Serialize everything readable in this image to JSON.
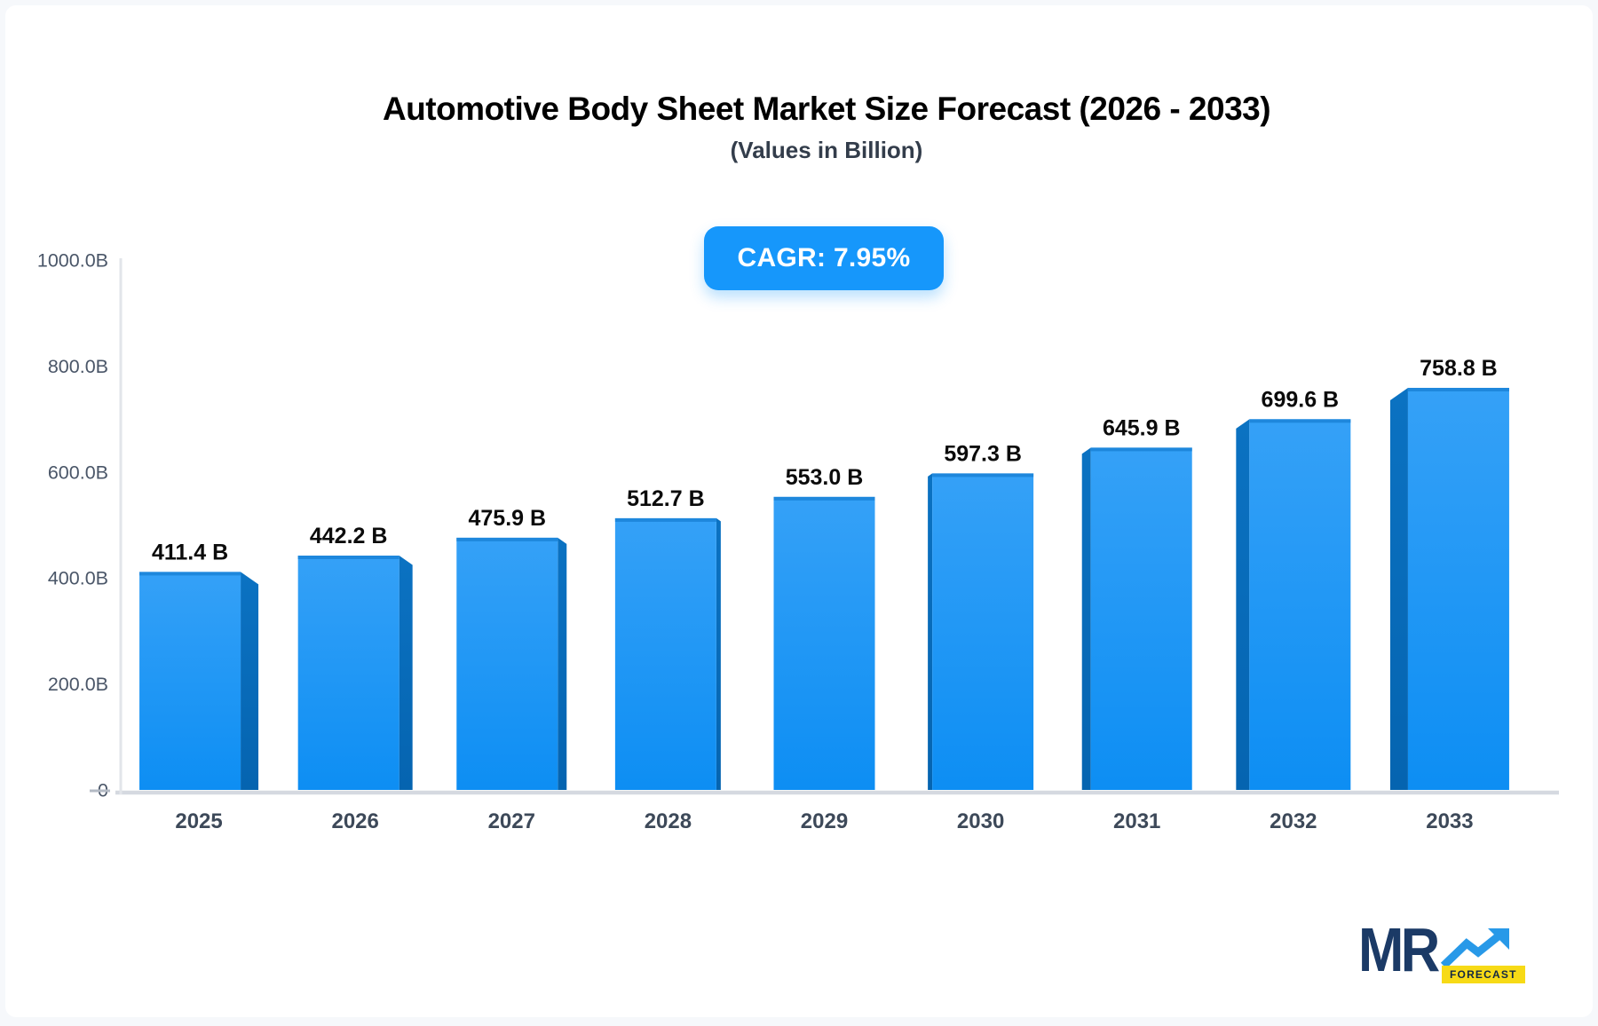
{
  "header": {
    "title": "Automotive Body Sheet Market Size Forecast (2026 - 2033)",
    "subtitle": "(Values in Billion)"
  },
  "badge": {
    "label": "CAGR: 7.95%",
    "bg": "#1697fb",
    "text_color": "#ffffff"
  },
  "chart_data": {
    "type": "bar",
    "title": "Automotive Body Sheet Market Size Forecast (2026 - 2033)",
    "subtitle": "(Values in Billion)",
    "xlabel": "",
    "ylabel": "",
    "categories": [
      "2025",
      "2026",
      "2027",
      "2028",
      "2029",
      "2030",
      "2031",
      "2032",
      "2033"
    ],
    "values": [
      411.4,
      442.2,
      475.9,
      512.7,
      553.0,
      597.3,
      645.9,
      699.6,
      758.8
    ],
    "value_labels": [
      "411.4 B",
      "442.2 B",
      "475.9 B",
      "512.7 B",
      "553.0 B",
      "597.3 B",
      "645.9 B",
      "699.6 B",
      "758.8 B"
    ],
    "y_ticks": [
      0,
      200,
      400,
      600,
      800,
      1000
    ],
    "y_tick_labels": [
      "0",
      "200.0B",
      "400.0B",
      "600.0B",
      "800.0B",
      "1000.0B"
    ],
    "ylim": [
      0,
      1000
    ],
    "grid": false,
    "legend": "none",
    "cagr": "7.95%",
    "colors": {
      "bar_face_top": "#35a1f7",
      "bar_face_bottom": "#0d8ef3",
      "bar_top_edge": "#1e87dc",
      "bar_side_top": "#0b72c2",
      "bar_side_bottom": "#0564b0",
      "axis_line": "#e2e5ea",
      "baseline": "#d5d9e0",
      "tick_text": "#4a5668",
      "x_label_text": "#3d4959",
      "value_label_text": "#0b0b0b"
    }
  },
  "logo": {
    "name": "MR",
    "sub": "FORECAST"
  }
}
